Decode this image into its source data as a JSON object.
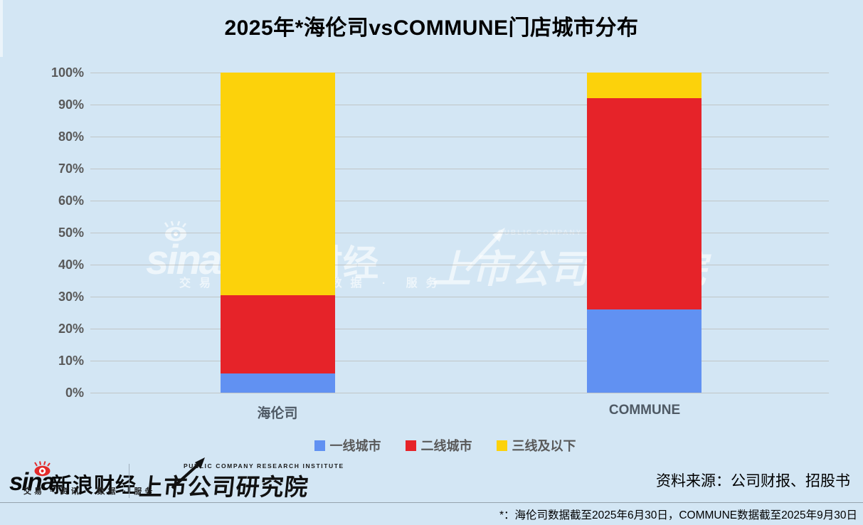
{
  "title": "2025年*海伦司vsCOMMUNE门店城市分布",
  "chart_data": {
    "type": "bar",
    "stacked": true,
    "title": "2025年*海伦司vsCOMMUNE门店城市分布",
    "categories": [
      "海伦司",
      "COMMUNE"
    ],
    "series": [
      {
        "name": "一线城市",
        "color": "#6191F2",
        "values": [
          6,
          26
        ]
      },
      {
        "name": "二线城市",
        "color": "#E62329",
        "values": [
          24.5,
          66
        ]
      },
      {
        "name": "三线及以下",
        "color": "#FCD20B",
        "values": [
          69.5,
          8
        ]
      }
    ],
    "ylim": [
      0,
      100
    ],
    "yticks": [
      "0%",
      "10%",
      "20%",
      "30%",
      "40%",
      "50%",
      "60%",
      "70%",
      "80%",
      "90%",
      "100%"
    ],
    "grid": true,
    "legend_position": "bottom",
    "background_color": "#D3E6F4"
  },
  "watermark": {
    "sina": "sina",
    "brand": "新浪财经",
    "tagline": "交易 · 资讯 · 数据 · 服务",
    "institute_en": "PUBLIC COMPANY RESEARCH INSTITUTE",
    "institute": "上市公司研究院"
  },
  "footer": {
    "sina_wordmark": "sina",
    "sina_brand": "新浪财经",
    "sina_tagline": "交易 · 资讯 · 数据 · 服务",
    "institute_en": "PUBLIC COMPANY RESEARCH INSTITUTE",
    "institute_cn": "上市公司研究院",
    "source": "资料来源：公司财报、招股书",
    "footnote": "*：海伦司数据截至2025年6月30日，COMMUNE数据截至2025年9月30日"
  }
}
